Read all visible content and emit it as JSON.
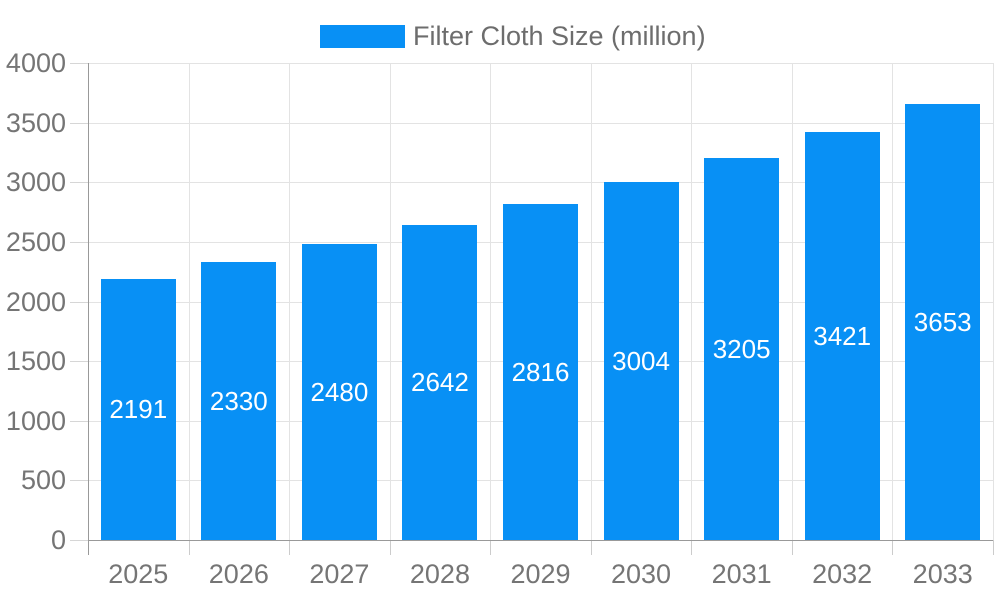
{
  "legend": {
    "items": [
      {
        "label": "Filter Cloth Size (million)",
        "color": "#0890F5"
      }
    ]
  },
  "chart_data": {
    "type": "bar",
    "title": "",
    "xlabel": "",
    "ylabel": "",
    "categories": [
      "2025",
      "2026",
      "2027",
      "2028",
      "2029",
      "2030",
      "2031",
      "2032",
      "2033"
    ],
    "series": [
      {
        "name": "Filter Cloth Size (million)",
        "values": [
          2191,
          2330,
          2480,
          2642,
          2816,
          3004,
          3205,
          3421,
          3653
        ]
      }
    ],
    "ylim": [
      0,
      4000
    ],
    "yticks": [
      0,
      500,
      1000,
      1500,
      2000,
      2500,
      3000,
      3500,
      4000
    ],
    "grid": true,
    "legend_position": "top-center",
    "value_label_position": "inside-center",
    "value_label_color": "#FFFFFF"
  },
  "colors": {
    "bar": "#0890F5",
    "axis_label": "#757575",
    "grid_line": "#E3E3E3",
    "axis_line": "#999999",
    "tick": "#CCCCCC",
    "value_label": "#FFFFFF",
    "legend_text": "#6D6D6D",
    "background": "#FFFFFF"
  }
}
